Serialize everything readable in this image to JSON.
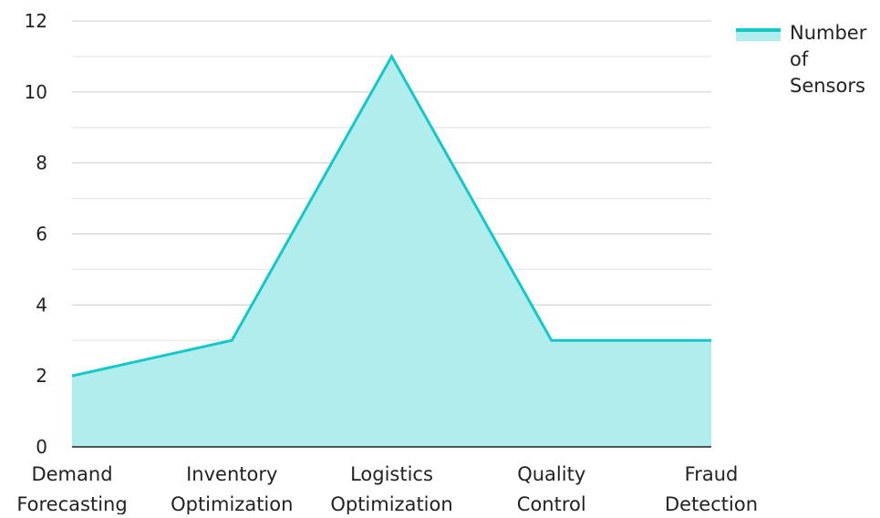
{
  "chart_data": {
    "type": "area",
    "categories": [
      "Demand Forecasting",
      "Inventory Optimization",
      "Logistics Optimization",
      "Quality Control",
      "Fraud Detection"
    ],
    "series": [
      {
        "name": "Number of Sensors",
        "values": [
          2,
          3,
          11,
          3,
          3
        ]
      }
    ],
    "ylim": [
      0,
      12
    ],
    "yticks": [
      0,
      2,
      4,
      6,
      8,
      10,
      12
    ],
    "grid": true,
    "legend_position": "top-right",
    "colors": {
      "line": "#14c8c8",
      "fill": "#b1eded",
      "grid": "#cccccc",
      "axis": "#222222"
    }
  }
}
